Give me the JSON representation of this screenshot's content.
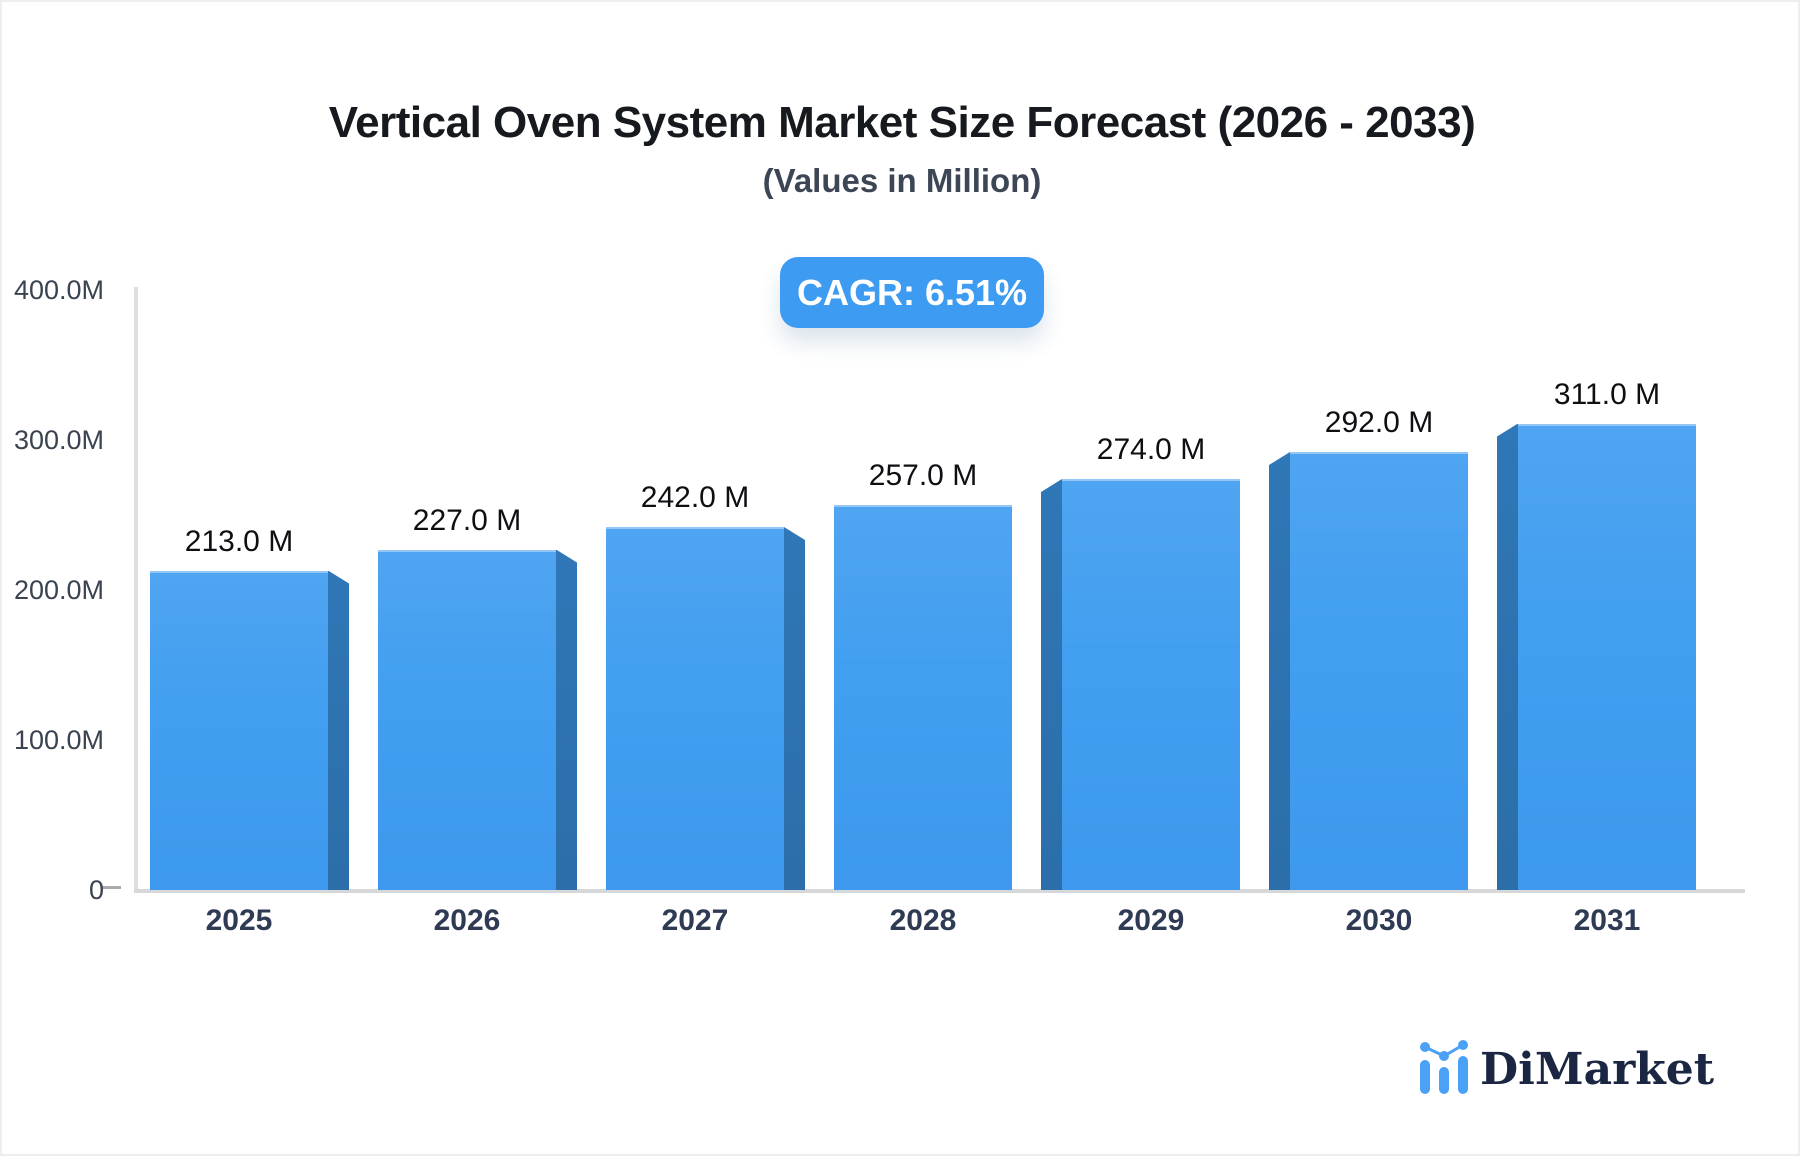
{
  "header": {
    "title": "Vertical Oven System Market Size Forecast (2026 - 2033)",
    "subtitle": "(Values in Million)",
    "cagr_label": "CAGR: 6.51%"
  },
  "chart_data": {
    "type": "bar",
    "categories": [
      "2025",
      "2026",
      "2027",
      "2028",
      "2029",
      "2030",
      "2031"
    ],
    "values": [
      213,
      227,
      242,
      257,
      274,
      292,
      311
    ],
    "bar_labels": [
      "213.0 M",
      "227.0 M",
      "242.0 M",
      "257.0 M",
      "274.0 M",
      "292.0 M",
      "311.0 M"
    ],
    "title": "Vertical Oven System Market Size Forecast (2026 - 2033)",
    "subtitle": "(Values in Million)",
    "unit": "Million",
    "xlabel": "",
    "ylabel": "",
    "ylim": [
      0,
      400
    ],
    "yticks": [
      {
        "value": 400,
        "label": "400.0M"
      },
      {
        "value": 300,
        "label": "300.0M"
      },
      {
        "value": 200,
        "label": "200.0M"
      },
      {
        "value": 100,
        "label": "100.0M"
      },
      {
        "value": 0,
        "label": "0"
      }
    ],
    "grid": false,
    "legend": false,
    "colors": {
      "bar_face": "#3F9BEF",
      "bar_face_light": "#4FA5F1",
      "bar_side": "#2E75B4",
      "axis_line": "#DCDDDE",
      "badge": "#3E9BF2",
      "value_label": "#0D0F13"
    }
  },
  "footer": {
    "brand": "DiMarket"
  }
}
